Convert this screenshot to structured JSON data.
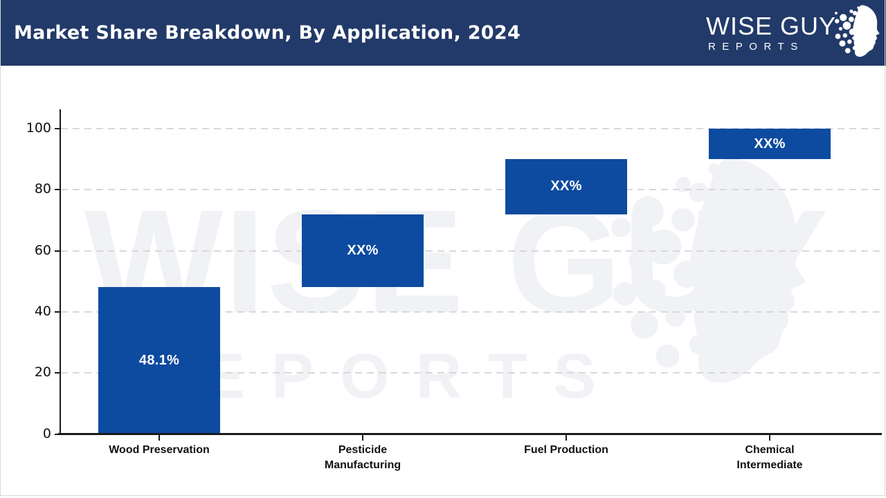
{
  "header": {
    "title": "Market Share Breakdown, By Application, 2024",
    "logo": {
      "line1": "WISE GUY",
      "line2": "REPORTS"
    }
  },
  "watermark": {
    "line1": "WISE GUY",
    "line2": "REPORTS"
  },
  "chart_data": {
    "type": "bar",
    "variant": "waterfall",
    "title": "Market Share Breakdown, By Application, 2024",
    "categories": [
      "Wood Preservation",
      "Pesticide Manufacturing",
      "Fuel Production",
      "Chemical Intermediate"
    ],
    "category_label_lines": [
      "Wood Preservation",
      "Pesticide\nManufacturing",
      "Fuel Production",
      "Chemical\nIntermediate"
    ],
    "series": [
      {
        "name": "Market share (%)",
        "segments": [
          {
            "category": "Wood Preservation",
            "start": 0,
            "end": 48.1,
            "label": "48.1%"
          },
          {
            "category": "Pesticide Manufacturing",
            "start": 48.1,
            "end": 72,
            "label": "XX%"
          },
          {
            "category": "Fuel Production",
            "start": 72,
            "end": 90,
            "label": "XX%"
          },
          {
            "category": "Chemical Intermediate",
            "start": 90,
            "end": 100,
            "label": "XX%"
          }
        ]
      }
    ],
    "xlabel": "",
    "ylabel": "",
    "ylim": [
      0,
      105
    ],
    "yticks": [
      0,
      20,
      40,
      60,
      80,
      100
    ],
    "grid": "horizontal dashed",
    "legend": "none"
  },
  "colors": {
    "header_bg": "#223a69",
    "title_text": "#ffffff",
    "bar_fill": "#0d4ba0",
    "bar_label": "#ffffff",
    "grid_line": "#d8d8d8",
    "axis_line": "#1a1a1a",
    "watermark": "#f1f2f6",
    "frame_border": "#d9d9d9"
  }
}
